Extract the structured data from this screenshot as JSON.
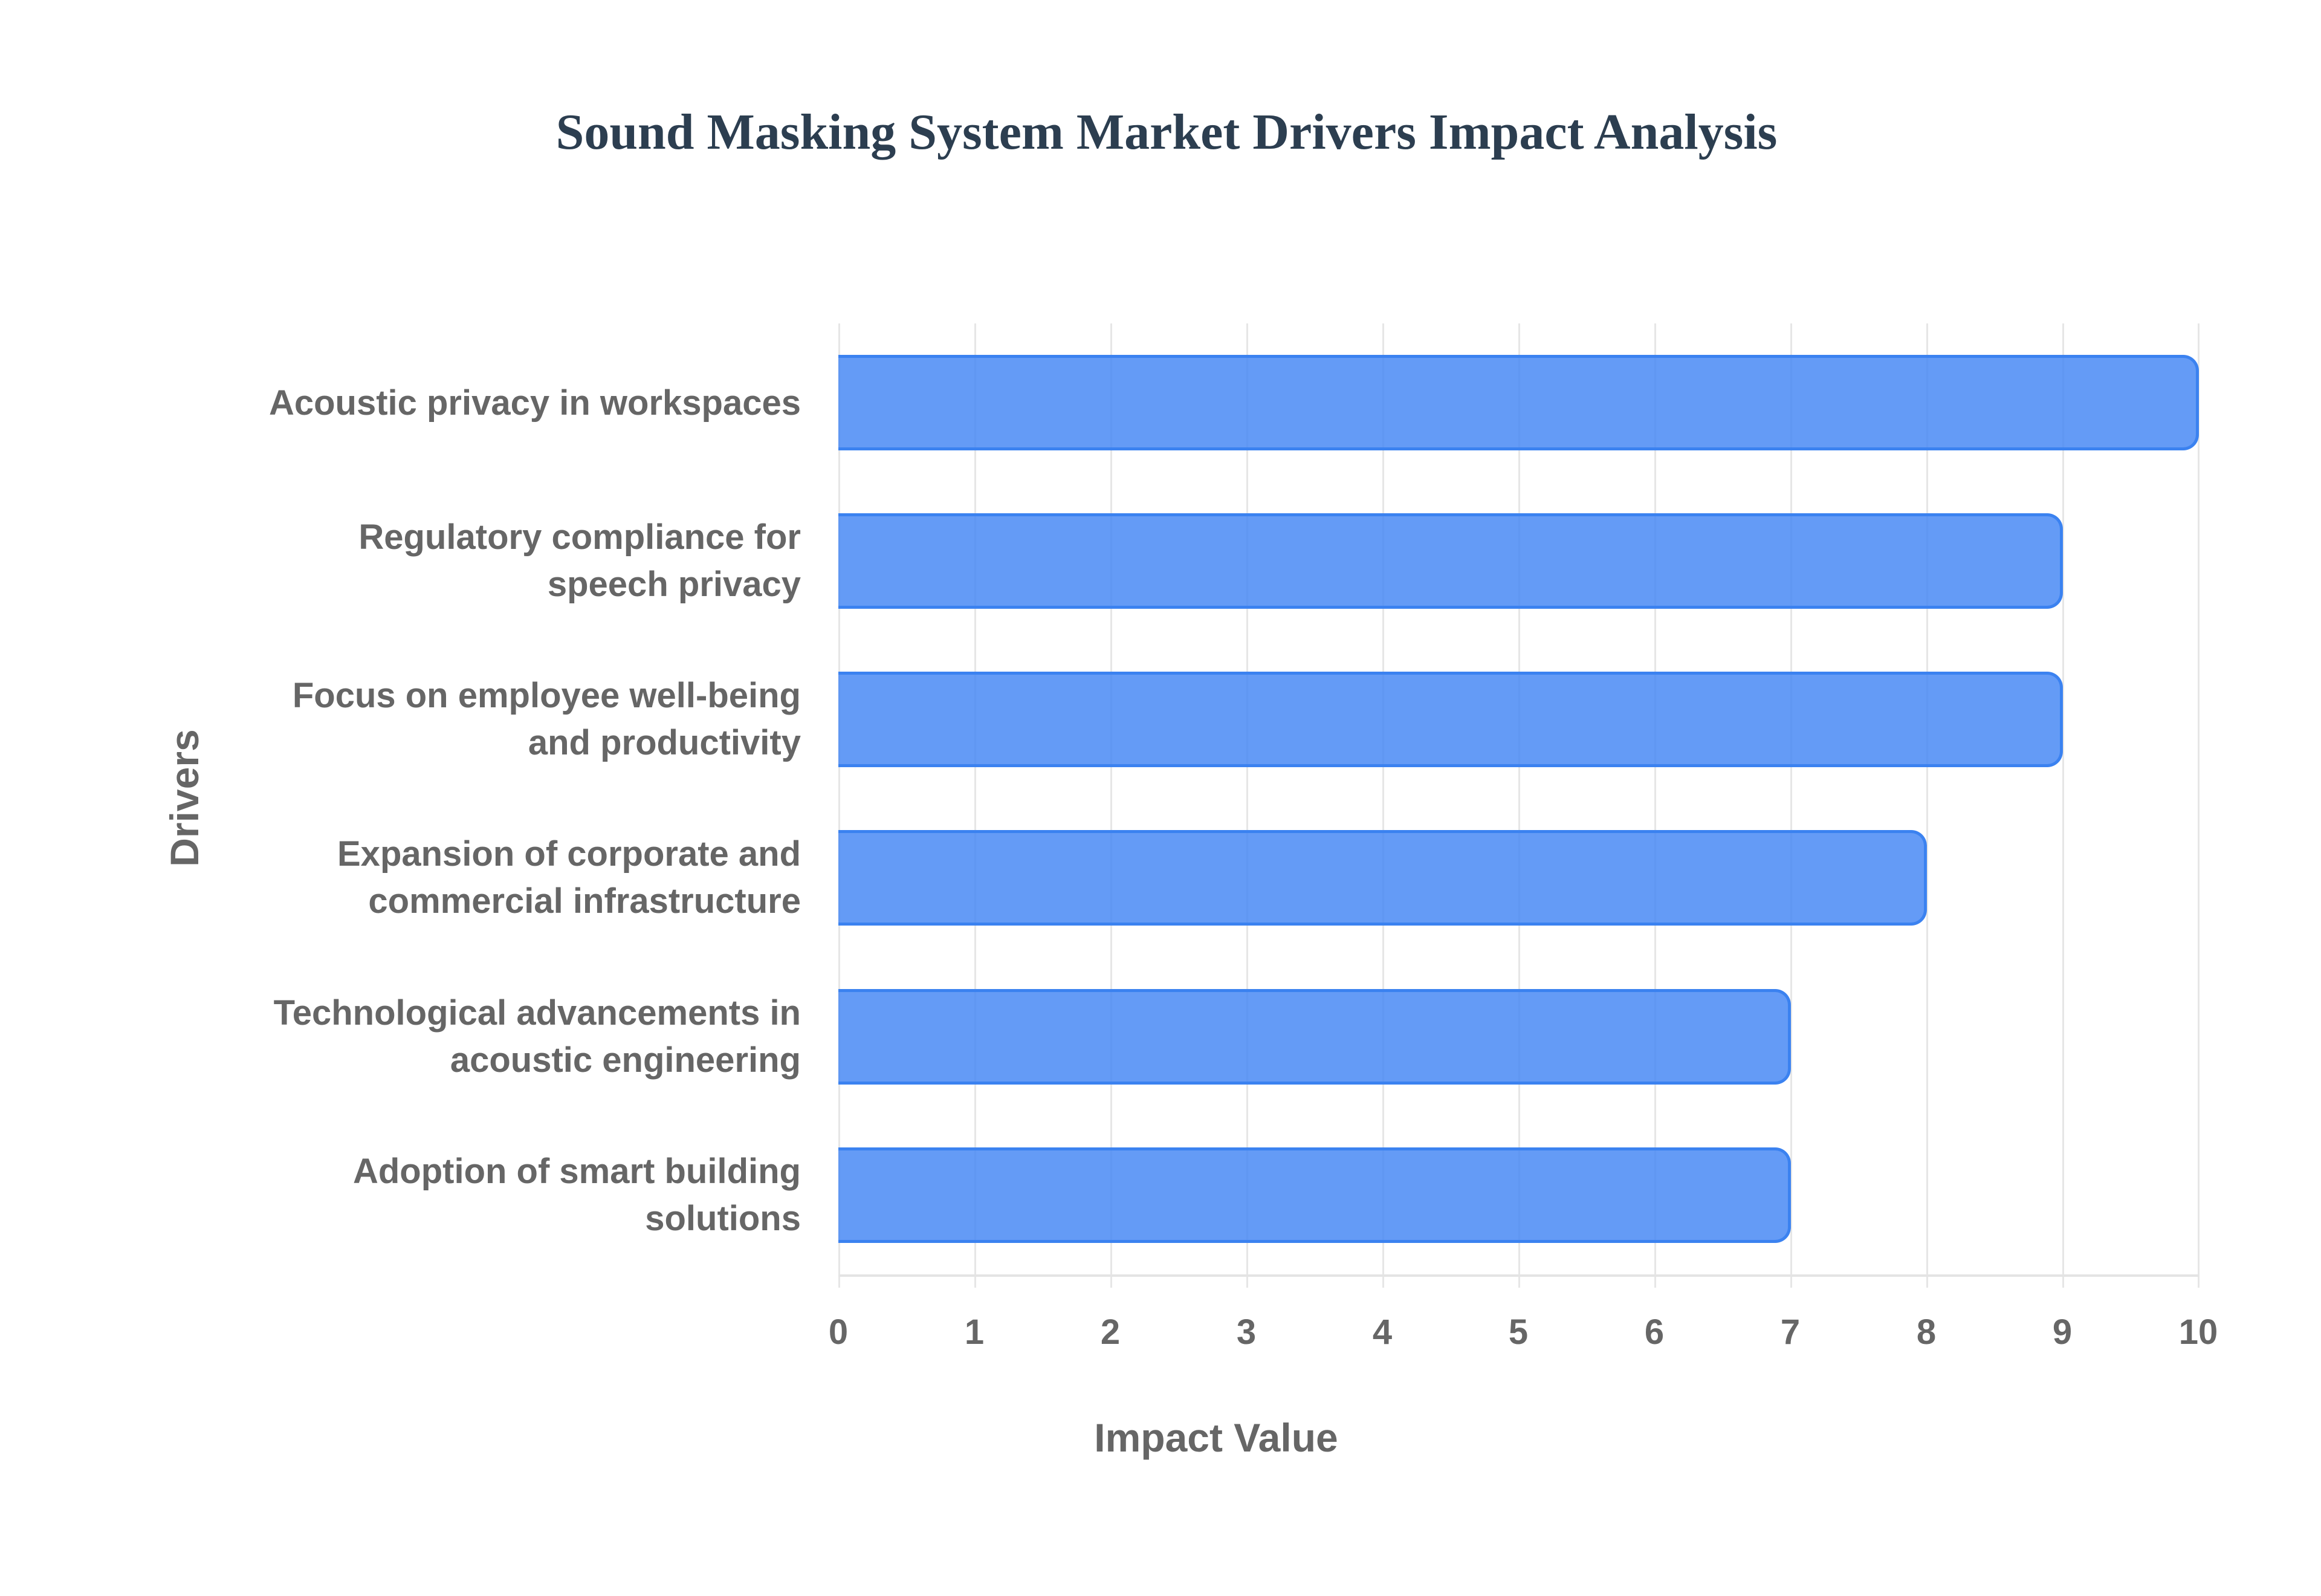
{
  "chart": {
    "title": "Sound Masking System Market Drivers Impact Analysis",
    "xlabel": "Impact Value",
    "ylabel": "Drivers",
    "x_ticks": [
      "0",
      "1",
      "2",
      "3",
      "4",
      "5",
      "6",
      "7",
      "8",
      "9",
      "10"
    ],
    "categories": [
      {
        "line1": "Acoustic privacy in workspaces",
        "line2": ""
      },
      {
        "line1": "Regulatory compliance for",
        "line2": "speech privacy"
      },
      {
        "line1": "Focus on employee well-being",
        "line2": "and productivity"
      },
      {
        "line1": "Expansion of corporate and",
        "line2": "commercial infrastructure"
      },
      {
        "line1": "Technological advancements in",
        "line2": "acoustic engineering"
      },
      {
        "line1": "Adoption of smart building",
        "line2": "solutions"
      }
    ],
    "colors": {
      "bar_fill": "#4285f4",
      "bar_border": "#3b82f0",
      "title": "#2c3e50",
      "text": "#666666",
      "grid": "#e6e6e6"
    }
  },
  "chart_data": {
    "type": "bar",
    "orientation": "horizontal",
    "title": "Sound Masking System Market Drivers Impact Analysis",
    "xlabel": "Impact Value",
    "ylabel": "Drivers",
    "categories": [
      "Acoustic privacy in workspaces",
      "Regulatory compliance for speech privacy",
      "Focus on employee well-being and productivity",
      "Expansion of corporate and commercial infrastructure",
      "Technological advancements in acoustic engineering",
      "Adoption of smart building solutions"
    ],
    "values": [
      10,
      9,
      9,
      8,
      7,
      7
    ],
    "xlim": [
      0,
      10
    ],
    "x_ticks": [
      0,
      1,
      2,
      3,
      4,
      5,
      6,
      7,
      8,
      9,
      10
    ],
    "grid": true,
    "legend": null
  }
}
